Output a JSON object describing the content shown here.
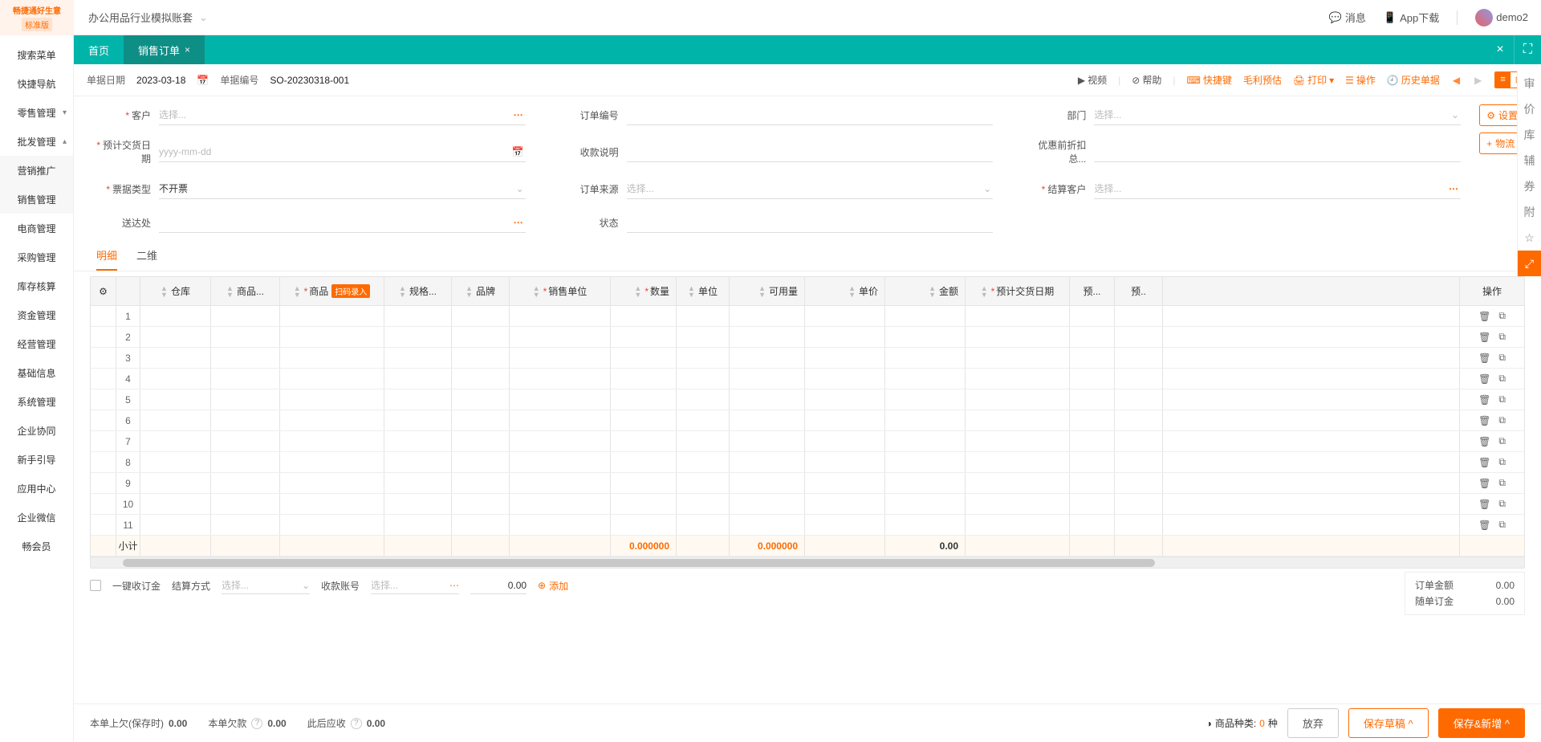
{
  "topbar": {
    "logo_main": "畅捷通好生意",
    "logo_sub": "标准版",
    "org_name": "办公用品行业模拟账套",
    "msg_label": "消息",
    "app_label": "App下载",
    "user_name": "demo2"
  },
  "sidebar": {
    "items": [
      {
        "label": "搜索菜单",
        "arrow": ""
      },
      {
        "label": "快捷导航",
        "arrow": ""
      },
      {
        "label": "零售管理",
        "arrow": "▾"
      },
      {
        "label": "批发管理",
        "arrow": "▴"
      },
      {
        "label": "营销推广",
        "arrow": "",
        "sub": true
      },
      {
        "label": "销售管理",
        "arrow": "",
        "sub": true
      },
      {
        "label": "电商管理",
        "arrow": ""
      },
      {
        "label": "采购管理",
        "arrow": ""
      },
      {
        "label": "库存核算",
        "arrow": ""
      },
      {
        "label": "资金管理",
        "arrow": ""
      },
      {
        "label": "经营管理",
        "arrow": ""
      },
      {
        "label": "基础信息",
        "arrow": ""
      },
      {
        "label": "系统管理",
        "arrow": ""
      },
      {
        "label": "企业协同",
        "arrow": ""
      },
      {
        "label": "新手引导",
        "arrow": ""
      },
      {
        "label": "应用中心",
        "arrow": ""
      },
      {
        "label": "企业微信",
        "arrow": ""
      },
      {
        "label": "畅会员",
        "arrow": ""
      }
    ]
  },
  "tabs": {
    "home": "首页",
    "active": "销售订单"
  },
  "dochdr": {
    "date_label": "单据日期",
    "date_value": "2023-03-18",
    "no_label": "单据编号",
    "no_value": "SO-20230318-001",
    "links": {
      "video": "视频",
      "help": "帮助",
      "shortcut": "快捷键",
      "profit": "毛利预估",
      "print": "打印",
      "ops": "操作",
      "history": "历史单据"
    }
  },
  "form": {
    "customer_label": "客户",
    "customer_ph": "选择...",
    "orderno_label": "订单编号",
    "dept_label": "部门",
    "dept_ph": "选择...",
    "delivdate_label": "预计交货日期",
    "delivdate_ph": "yyyy-mm-dd",
    "paydesc_label": "收款说明",
    "pretotal_label": "优惠前折扣总...",
    "invoice_label": "票据类型",
    "invoice_val": "不开票",
    "source_label": "订单来源",
    "source_ph": "选择...",
    "settlecust_label": "结算客户",
    "settlecust_ph": "选择...",
    "shipto_label": "送达处",
    "status_label": "状态",
    "btn_settings": "设置",
    "btn_logistics": "物流"
  },
  "subtabs": {
    "detail": "明细",
    "twod": "二维"
  },
  "gridhdr": {
    "wh": "仓库",
    "sku": "商品...",
    "prod": "商品",
    "prod_tag": "扫码录入",
    "spec": "规格...",
    "brand": "品牌",
    "saleunit": "销售单位",
    "qty": "数量",
    "uom": "单位",
    "avail": "可用量",
    "price": "单价",
    "amt": "金额",
    "date": "预计交货日期",
    "pre1": "预...",
    "pre2": "预..",
    "ops": "操作"
  },
  "rows": [
    1,
    2,
    3,
    4,
    5,
    6,
    7,
    8,
    9,
    10,
    11
  ],
  "subtotal": {
    "label": "小计",
    "qty": "0.000000",
    "avail": "0.000000",
    "amt": "0.00"
  },
  "payrow": {
    "onekey": "一键收订金",
    "settle_label": "结算方式",
    "settle_ph": "选择...",
    "acct_label": "收款账号",
    "acct_ph": "选择...",
    "amt": "0.00",
    "add": "添加"
  },
  "totals": {
    "order_label": "订单金额",
    "order_val": "0.00",
    "deposit_label": "随单订金",
    "deposit_val": "0.00"
  },
  "footer": {
    "prev_label": "本单上欠(保存时)",
    "prev_val": "0.00",
    "owe_label": "本单欠款",
    "owe_val": "0.00",
    "after_label": "此后应收",
    "after_val": "0.00",
    "cat_label": "商品种类:",
    "cat_val": "0",
    "cat_unit": "种",
    "btn_discard": "放弃",
    "btn_draft": "保存草稿",
    "btn_save": "保存&新增"
  },
  "rail_icons": [
    "审",
    "价",
    "库",
    "辅",
    "券",
    "附",
    "☆",
    "⤢"
  ]
}
